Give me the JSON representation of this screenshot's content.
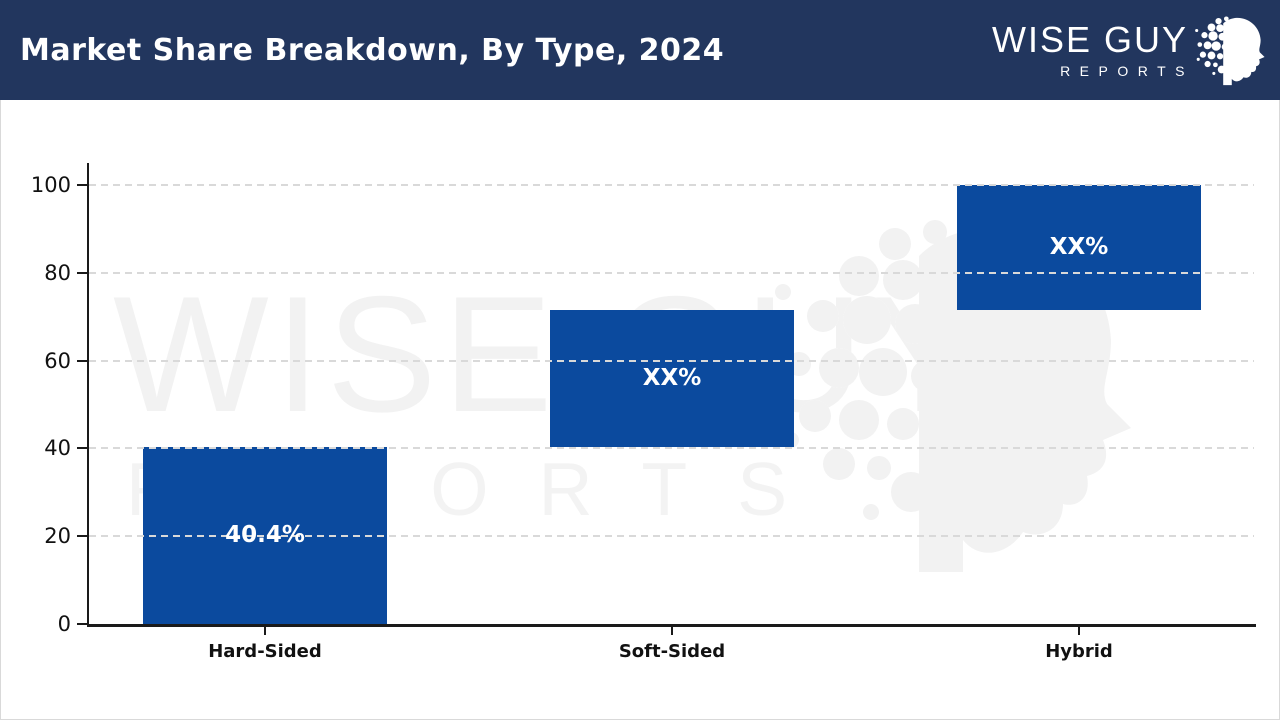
{
  "header": {
    "title": "Market Share Breakdown, By Type, 2024",
    "background_color": "#22365e",
    "logo": {
      "wordmark": "WISE GUY",
      "subtitle": "REPORTS"
    }
  },
  "watermark": {
    "wordmark": "WISE GUY",
    "subtitle": "REPORTS"
  },
  "chart_data": {
    "type": "bar",
    "variant": "floating-segment-bar (stacked percentage breakdown)",
    "title": "Market Share Breakdown, By Type, 2024",
    "categories": [
      "Hard-Sided",
      "Soft-Sided",
      "Hybrid"
    ],
    "segments": [
      {
        "category": "Hard-Sided",
        "start": 0,
        "end": 40.4,
        "label": "40.4%"
      },
      {
        "category": "Soft-Sided",
        "start": 40.4,
        "end": 71.6,
        "label": "XX%"
      },
      {
        "category": "Hybrid",
        "start": 71.6,
        "end": 100,
        "label": "XX%"
      }
    ],
    "y_ticks": [
      0,
      20,
      40,
      60,
      80,
      100
    ],
    "ylim": [
      0,
      105
    ],
    "xlabel": "",
    "ylabel": "",
    "grid": "horizontal-dashed, drawn over bars",
    "legend": "none",
    "bar_color": "#0b4a9e",
    "bar_label_color": "#ffffff",
    "axis_color": "#1a1a1a",
    "gridline_color": "#d9d9d9"
  }
}
